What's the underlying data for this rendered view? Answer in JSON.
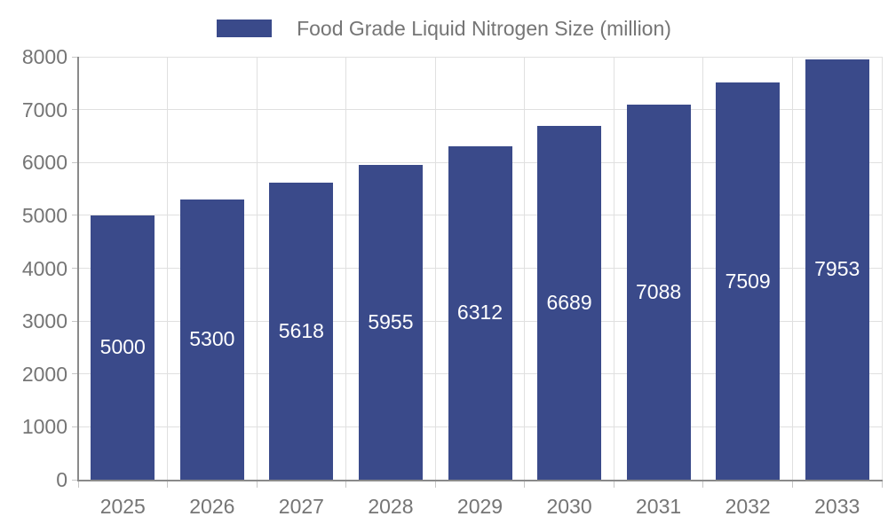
{
  "chart_data": {
    "type": "bar",
    "title": "",
    "categories": [
      "2025",
      "2026",
      "2027",
      "2028",
      "2029",
      "2030",
      "2031",
      "2032",
      "2033"
    ],
    "series": [
      {
        "name": "Food Grade Liquid Nitrogen Size (million)",
        "values": [
          5000,
          5300,
          5618,
          5955,
          6312,
          6689,
          7088,
          7509,
          7953
        ],
        "color": "#3A4A8A",
        "value_label_color": "#ffffff"
      }
    ],
    "xlabel": "",
    "ylabel": "",
    "ylim": [
      0,
      8000
    ],
    "ytick_step": 1000,
    "ytick_labels": [
      "0",
      "1000",
      "2000",
      "3000",
      "4000",
      "5000",
      "6000",
      "7000",
      "8000"
    ],
    "grid": true,
    "legend_position": "top-center",
    "value_labels_shown": true,
    "value_label_position": "inside-center"
  },
  "style": {
    "background_color": "#ffffff",
    "bar_color": "#3A4A8A",
    "grid_color": "#e0e0e0",
    "axis_color": "#8a8a8a",
    "tick_color": "#c6c6c6",
    "tick_label_color": "#757575",
    "legend_text_color": "#757575",
    "bar_label_color": "#ffffff"
  }
}
